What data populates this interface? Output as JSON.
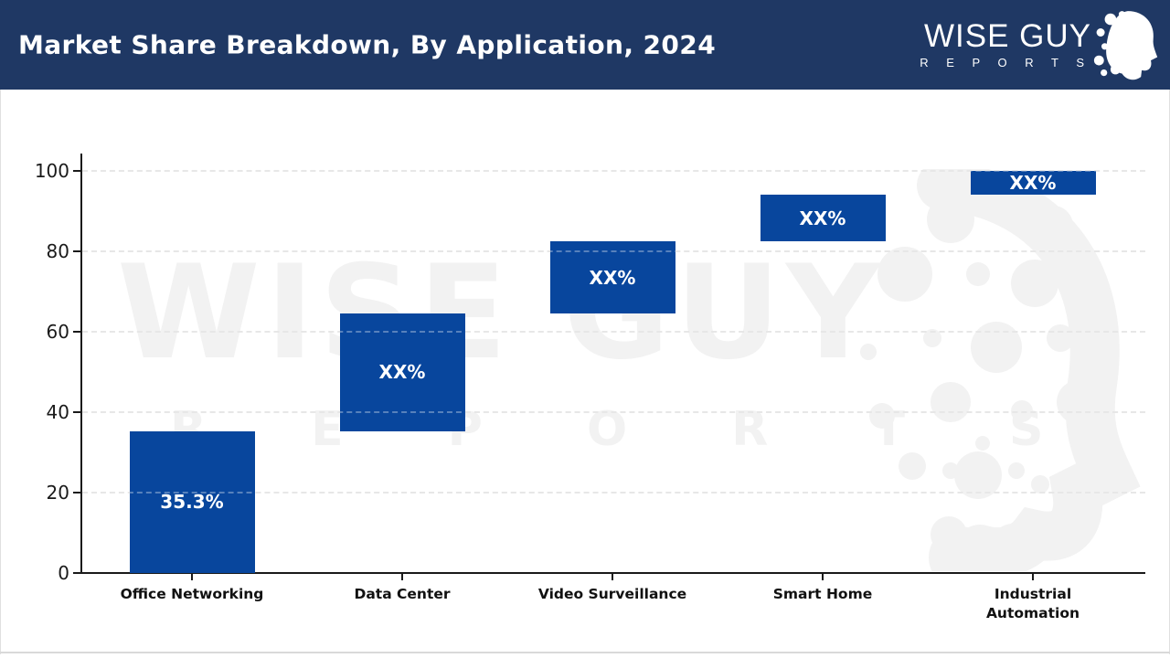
{
  "header": {
    "title": "Market Share Breakdown, By Application, 2024",
    "background_color": "#1f3864",
    "logo": {
      "line1": "WISE GUY",
      "line2": "R E P O R T S"
    }
  },
  "watermark": {
    "line1": "WISE GUY",
    "line2": "R E P O R T S"
  },
  "chart_data": {
    "type": "bar",
    "subtype": "waterfall",
    "title": "Market Share Breakdown, By Application, 2024",
    "categories": [
      "Office Networking",
      "Data Center",
      "Video Surveillance",
      "Smart Home",
      "Industrial Automation"
    ],
    "segments": [
      {
        "category": "Office Networking",
        "start": 0,
        "end": 35.3,
        "label": "35.3%"
      },
      {
        "category": "Data Center",
        "start": 35.3,
        "end": 64.6,
        "label": "XX%"
      },
      {
        "category": "Video Surveillance",
        "start": 64.6,
        "end": 82.4,
        "label": "XX%"
      },
      {
        "category": "Smart Home",
        "start": 82.4,
        "end": 94.0,
        "label": "XX%"
      },
      {
        "category": "Industrial Automation",
        "start": 94.0,
        "end": 100,
        "label": "XX%"
      }
    ],
    "ylim": [
      0,
      100
    ],
    "yticks": [
      0,
      20,
      40,
      60,
      80,
      100
    ],
    "grid": "horizontal-dashed",
    "legend_position": "none",
    "bar_color": "#08469d",
    "bar_label_color": "#ffffff",
    "axis_color": "#1a1a1a"
  }
}
